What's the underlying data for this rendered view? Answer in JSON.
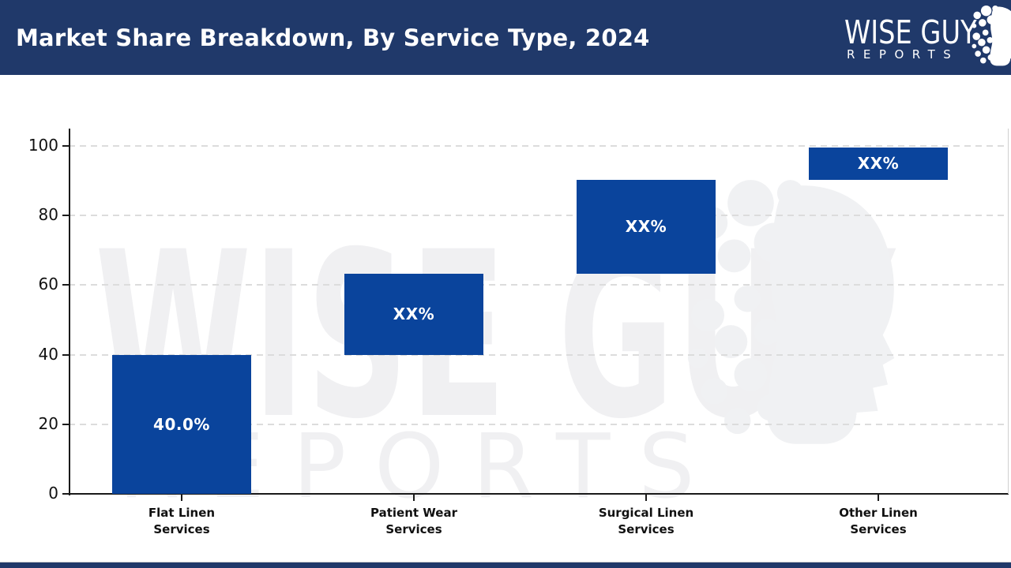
{
  "chart_data": {
    "type": "bar",
    "subtype": "waterfall",
    "title": "Market Share Breakdown, By Service Type, 2024",
    "categories": [
      "Flat Linen\nServices",
      "Patient Wear\nServices",
      "Surgical Linen\nServices",
      "Other Linen\nServices"
    ],
    "segments": [
      {
        "start": 0,
        "end": 40,
        "label": "40.0%"
      },
      {
        "start": 40,
        "end": 63.3,
        "label": "XX%"
      },
      {
        "start": 63.3,
        "end": 90.3,
        "label": "XX%"
      },
      {
        "start": 90.3,
        "end": 99.6,
        "label": "XX%"
      }
    ],
    "xlabel": "",
    "ylabel": "",
    "yticks": [
      0,
      20,
      40,
      60,
      80,
      100
    ],
    "ylim": [
      0,
      104
    ],
    "grid": "horizontal-dashed",
    "legend": "none",
    "bar_color": "#0a449c",
    "bar_label_color": "#ffffff"
  },
  "header": {
    "logo": {
      "line1": "WISE GUY",
      "line2": "REPORTS"
    }
  },
  "watermark": {
    "line1": "WISE GUY",
    "line2": "REPORTS"
  },
  "colors": {
    "header_bg": "#20396a",
    "title_text": "#ffffff",
    "bar": "#0a449c",
    "watermark": "#f0f0f2",
    "grid": "#dcdcdc",
    "axis": "#1a1a1a",
    "spine_right": "#d0d0d0",
    "text": "#111111"
  }
}
